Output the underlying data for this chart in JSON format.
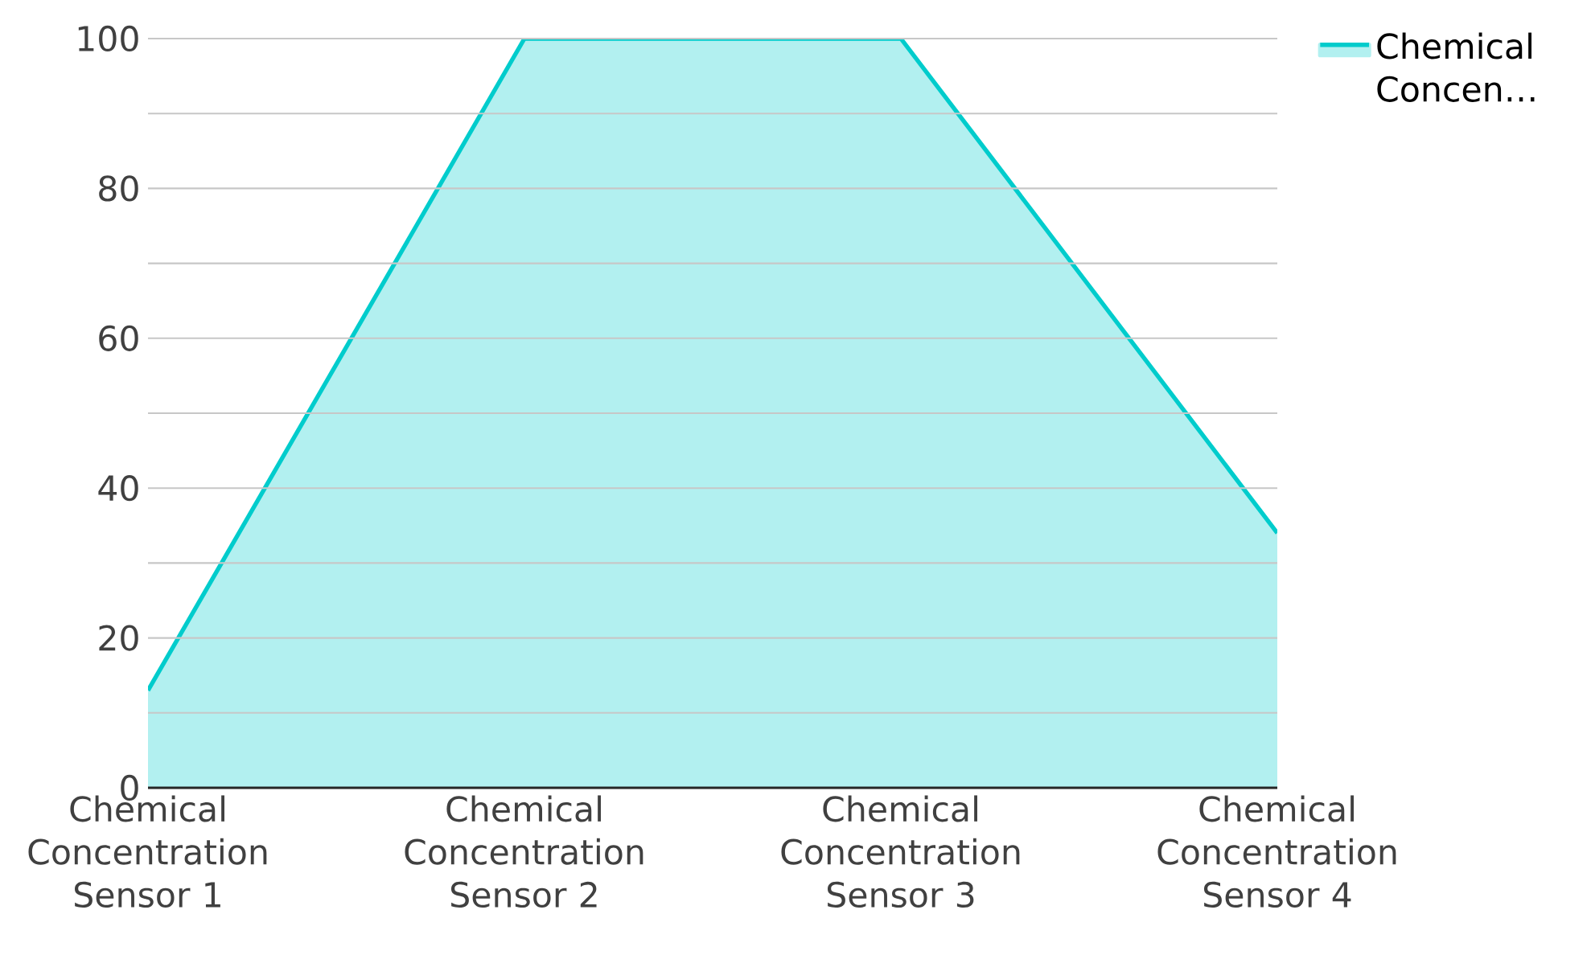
{
  "chart_data": {
    "type": "area",
    "categories": [
      "Chemical Concentration Sensor 1",
      "Chemical Concentration Sensor 2",
      "Chemical Concentration Sensor 3",
      "Chemical Concentration Sensor 4"
    ],
    "series": [
      {
        "name": "Chemical Concen…",
        "color": "#00cccc",
        "values": [
          13,
          100,
          100,
          34
        ]
      }
    ],
    "ylim": [
      0,
      100
    ],
    "yticks": [
      0,
      {
        "value": 10,
        "label": null
      },
      20,
      {
        "value": 30,
        "label": null
      },
      40,
      {
        "value": 50,
        "label": null
      },
      60,
      {
        "value": 70,
        "label": null
      },
      80,
      {
        "value": 90,
        "label": null
      },
      100
    ],
    "grid": "y",
    "legend": "top right"
  }
}
